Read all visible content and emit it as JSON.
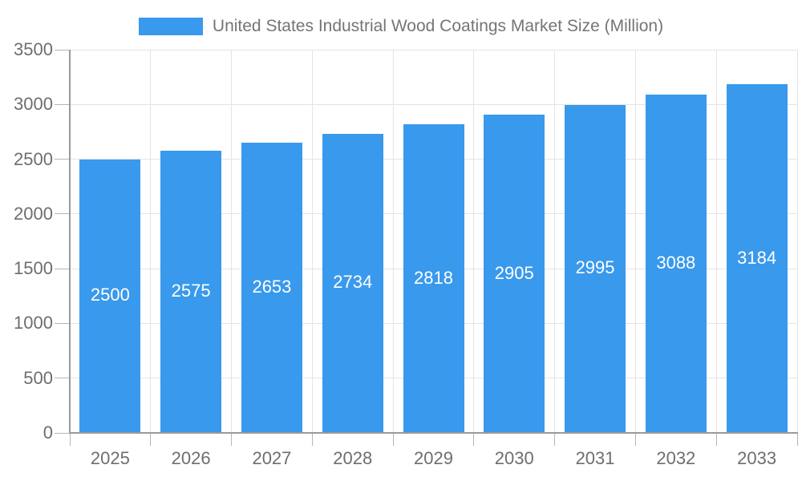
{
  "chart_data": {
    "type": "bar",
    "title": "United States Industrial Wood Coatings Market Size (Million)",
    "categories": [
      "2025",
      "2026",
      "2027",
      "2028",
      "2029",
      "2030",
      "2031",
      "2032",
      "2033"
    ],
    "values": [
      2500,
      2575,
      2653,
      2734,
      2818,
      2905,
      2995,
      3088,
      3184
    ],
    "value_labels": [
      "2500",
      "2575",
      "2653",
      "2734",
      "2818",
      "2905",
      "2995",
      "3088",
      "3184"
    ],
    "xlabel": "",
    "ylabel": "",
    "ylim": [
      0,
      3500
    ],
    "yticks": [
      0,
      500,
      1000,
      1500,
      2000,
      2500,
      3000,
      3500
    ],
    "grid": true,
    "legend_position": "top",
    "colors": {
      "bar": "#3999EC",
      "value_label": "#FFFFFF",
      "axis_line": "#9A9A9A",
      "tick": "#B5B5B5",
      "grid": "#E4E4E4",
      "axis_text": "#6E6E6E",
      "legend_text": "#757575",
      "background": "#FFFFFF"
    }
  }
}
